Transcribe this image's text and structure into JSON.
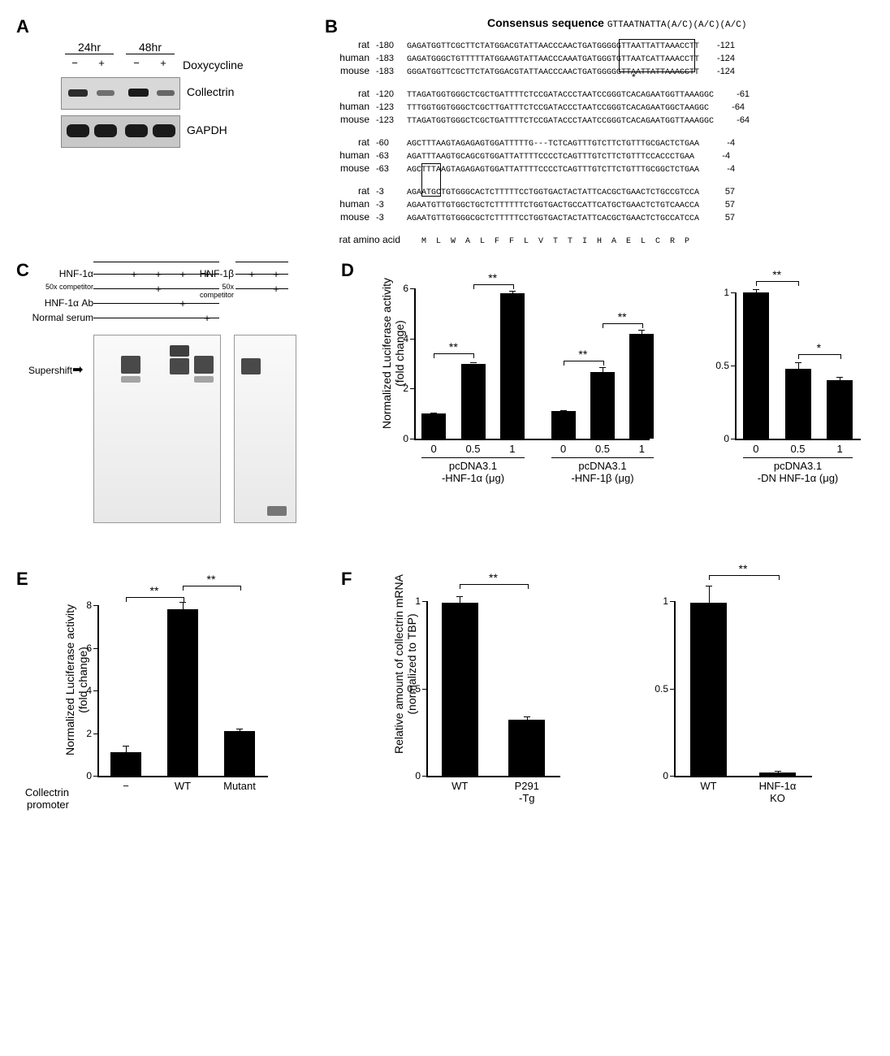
{
  "panelA": {
    "label": "A",
    "col_headers": [
      "24hr",
      "48hr"
    ],
    "dox_label": "Doxycycline",
    "lane_signs": [
      "−",
      "+",
      "−",
      "+"
    ],
    "row_labels": [
      "Collectrin",
      "GAPDH"
    ],
    "band_intensities_collectrin": [
      0.9,
      0.5,
      1.0,
      0.55
    ],
    "band_intensities_gapdh": [
      1.0,
      1.0,
      1.0,
      1.0
    ]
  },
  "panelB": {
    "label": "B",
    "consensus_label": "Consensus sequence",
    "consensus_seq": "GTTAATNATTA(A/C)(A/C)(A/C)",
    "species": [
      "rat",
      "human",
      "mouse"
    ],
    "block1": {
      "pos_left": [
        "-180",
        "-183",
        "-183"
      ],
      "seq": [
        "GAGATGGTTCGCTTCTATGGACGTATTAACCCAACTGATGGGGGTTAATTATTAAACCTT",
        "GAGATGGGCTGTTTTTATGGAAGTATTAACCCAAATGATGGGTGTTAATCATTAAACCTT",
        "GGGATGGTTCGCTTCTATGGACGTATTAACCCAACTGATGGGGGTTAATTATTAAACCTT"
      ],
      "pos_right": [
        "-121",
        "-124",
        "-124"
      ]
    },
    "block2": {
      "pos_left": [
        "-120",
        "-123",
        "-123"
      ],
      "seq": [
        "TTAGATGGTGGGCTCGCTGATTTTCTCCGATACCCTAATCCGGGTCACAGAATGGTTAAAGGC",
        "TTTGGTGGTGGGCTCGCTTGATTTCTCCGATACCCTAATCCGGGTCACAGAATGGCTAAGGC",
        "TTAGATGGTGGGCTCGCTGATTTTCTCCGATACCCTAATCCGGGTCACAGAATGGTTAAAGGC"
      ],
      "pos_right": [
        "-61",
        "-64",
        "-64"
      ]
    },
    "block3": {
      "pos_left": [
        "-60",
        "-63",
        "-63"
      ],
      "seq": [
        "AGCTTTAAGTAGAGAGTGGATTTTTG---TCTCAGTTTGTCTTCTGTTTGCGACTCTGAA",
        "AGATTTAAGTGCAGCGTGGATTATTTTCCCCTCAGTTTGTCTTCTGTTTCCACCCTGAA",
        "AGCTTTAAGTAGAGAGTGGATTATTTTCCCCTCAGTTTGTCTTCTGTTTGCGGCTCTGAA"
      ],
      "pos_right": [
        "-4",
        "-4",
        "-4"
      ]
    },
    "block4": {
      "pos_left": [
        "-3",
        "-3",
        "-3"
      ],
      "seq": [
        "AGAATGCTGTGGGCACTCTTTTTCCTGGTGACTACTATTCACGCTGAACTCTGCCGTCCA",
        "AGAATGTTGTGGCTGCTCTTTTTTCTGGTGACTGCCATTCATGCTGAACTCTGTCAACCA",
        "AGAATGTTGTGGGCGCTCTTTTTCCTGGTGACTACTATTCACGCTGAACTCTGCCATCCA"
      ],
      "pos_right": [
        "57",
        "57",
        "57"
      ]
    },
    "aa_label": "rat amino acid",
    "aa_seq": "M  L  W  A  L  F  F  L  V  T  T  I  H  A  E  L  C  R  P"
  },
  "panelC": {
    "label": "C",
    "rows": [
      "HNF-1α",
      "50x competitor",
      "HNF-1α Ab",
      "Normal serum"
    ],
    "left_grid": [
      [
        "−",
        "+",
        "+",
        "+",
        "+"
      ],
      [
        "",
        "",
        "+",
        "",
        ""
      ],
      [
        "",
        "",
        "",
        "+",
        ""
      ],
      [
        "",
        "",
        "",
        "",
        "+"
      ]
    ],
    "right_header": "HNF-1β",
    "right_grid": [
      [
        "+",
        "+"
      ],
      [
        "",
        "+"
      ]
    ],
    "supershift_label": "Supershift"
  },
  "panelD": {
    "label": "D",
    "left_chart": {
      "ylabel": "Normalized Luciferase  activity\n(fold change)",
      "ylim": [
        0,
        6
      ],
      "ytick_step": 2,
      "groups": [
        {
          "name": "pcDNA3.1\n-HNF-1α (μg)",
          "cats": [
            "0",
            "0.5",
            "1"
          ],
          "values": [
            1.0,
            3.0,
            5.8
          ],
          "errs": [
            0.05,
            0.05,
            0.1
          ]
        },
        {
          "name": "pcDNA3.1\n-HNF-1β (μg)",
          "cats": [
            "0",
            "0.5",
            "1"
          ],
          "values": [
            1.1,
            2.65,
            4.2
          ],
          "errs": [
            0.05,
            0.2,
            0.15
          ]
        }
      ],
      "sig_marks": [
        "**",
        "**",
        "**",
        "**"
      ],
      "bar_color": "#000000"
    },
    "right_chart": {
      "ylabel": "",
      "ylim": [
        0,
        1.0
      ],
      "ytick_step": 0.5,
      "group_name": "pcDNA3.1\n-DN HNF-1α (μg)",
      "cats": [
        "0",
        "0.5",
        "1"
      ],
      "values": [
        1.0,
        0.48,
        0.4
      ],
      "errs": [
        0.02,
        0.04,
        0.02
      ],
      "sig_marks": [
        "**",
        "*"
      ],
      "bar_color": "#000000"
    }
  },
  "panelE": {
    "label": "E",
    "ylabel": "Normalized Luciferase  activity\n(fold change)",
    "ylim": [
      0,
      8
    ],
    "ytick_step": 2,
    "x_label": "Collectrin\npromoter",
    "cats": [
      "−",
      "WT",
      "Mutant"
    ],
    "values": [
      1.1,
      7.8,
      2.1
    ],
    "errs": [
      0.3,
      0.35,
      0.1
    ],
    "sig_marks": [
      "**",
      "**"
    ],
    "bar_color": "#000000"
  },
  "panelF": {
    "label": "F",
    "ylabel": "Relative amount of collectrin mRNA\n(normalized to TBP)",
    "left_chart": {
      "ylim": [
        0,
        1.0
      ],
      "ytick_step": 0.5,
      "cats": [
        "WT",
        "P291\n-Tg"
      ],
      "values": [
        0.99,
        0.32
      ],
      "errs": [
        0.04,
        0.02
      ],
      "sig": "**"
    },
    "right_chart": {
      "ylim": [
        0,
        1.0
      ],
      "ytick_step": 0.5,
      "cats": [
        "WT",
        "HNF-1α\nKO"
      ],
      "values": [
        0.99,
        0.02
      ],
      "errs": [
        0.1,
        0.01
      ],
      "sig": "**"
    },
    "bar_color": "#000000"
  }
}
